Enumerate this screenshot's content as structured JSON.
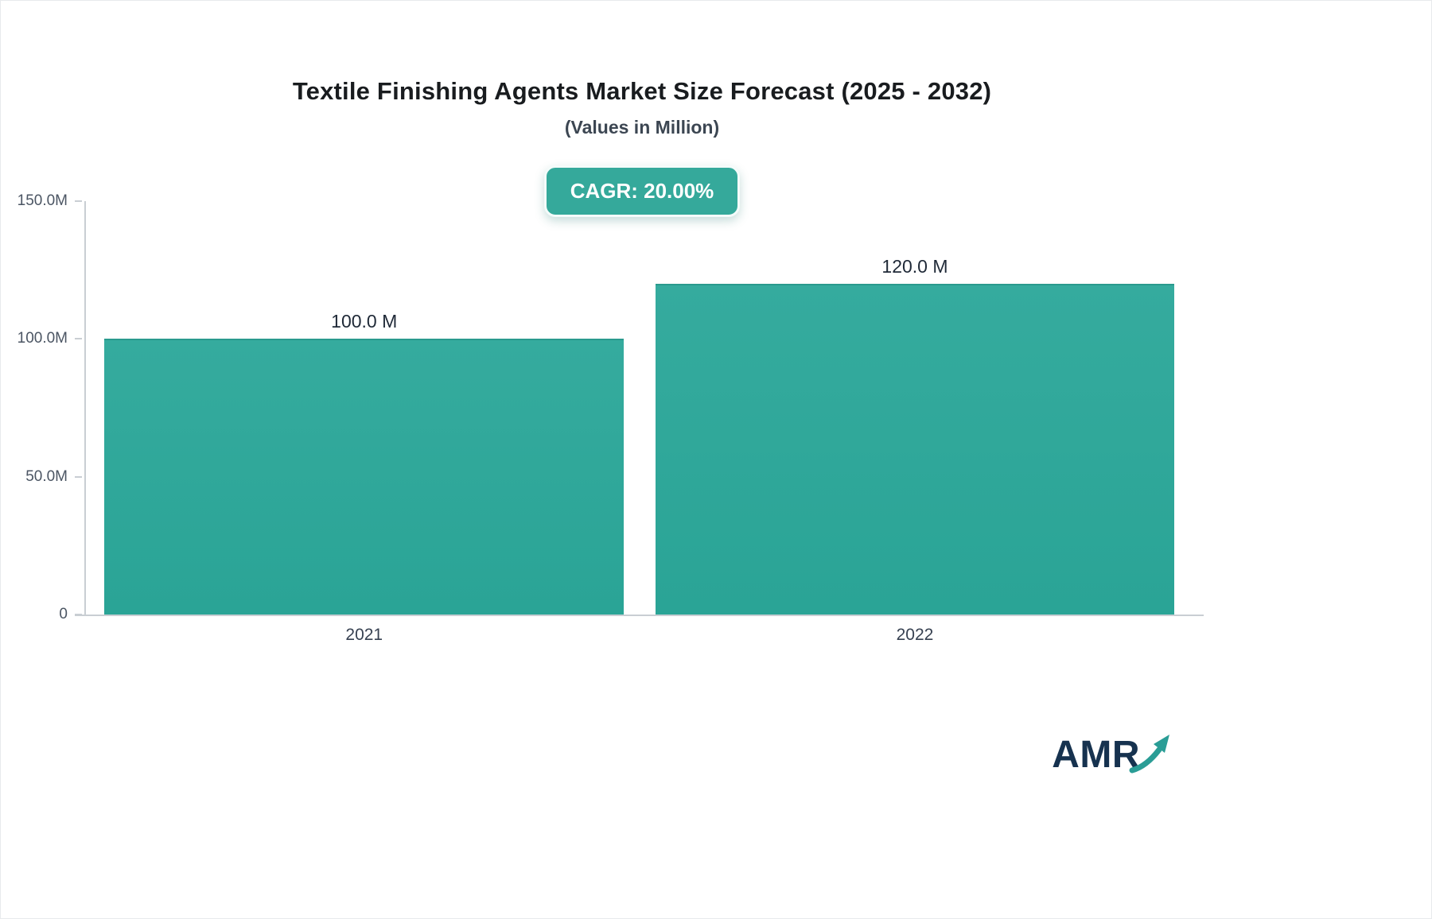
{
  "page": {
    "title": "Textile Finishing Agents Market Size Forecast (2025 - 2032)",
    "subtitle": "(Values in Million)",
    "cagr_badge": "CAGR: 20.00%",
    "logo_text": "AMR"
  },
  "colors": {
    "bar_top": "#35ab9e",
    "bar_bottom": "#2aa496",
    "badge_bg": "#35a99b",
    "axis": "#c9ced3",
    "logo": "#16324f",
    "logo_arrow": "#2a9d96"
  },
  "chart_data": {
    "type": "bar",
    "title": "Textile Finishing Agents Market Size Forecast (2025 - 2032)",
    "subtitle": "(Values in Million)",
    "categories": [
      "2021",
      "2022"
    ],
    "values": [
      100.0,
      120.0
    ],
    "value_labels": [
      "100.0 M",
      "120.0 M"
    ],
    "unit": "Million",
    "ylim": [
      0,
      150
    ],
    "yticks": [
      {
        "label": "150.0M",
        "value": 150
      },
      {
        "label": "100.0M",
        "value": 100
      },
      {
        "label": "50.0M",
        "value": 50
      },
      {
        "label": "0",
        "value": 0
      }
    ],
    "annotations": [
      "CAGR: 20.00%"
    ],
    "legend": "none",
    "grid": false
  }
}
